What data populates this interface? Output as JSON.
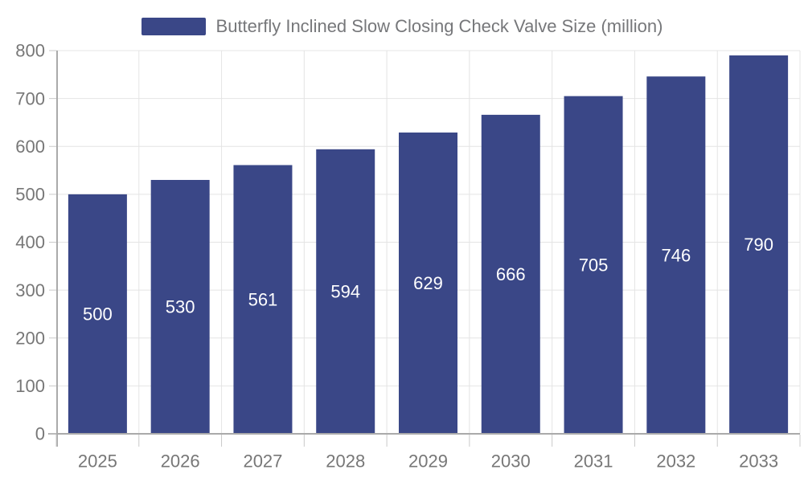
{
  "chart_data": {
    "type": "bar",
    "title": "Butterfly Inclined Slow Closing Check Valve Size (million)",
    "categories": [
      "2025",
      "2026",
      "2027",
      "2028",
      "2029",
      "2030",
      "2031",
      "2032",
      "2033"
    ],
    "values": [
      500,
      530,
      561,
      594,
      629,
      666,
      705,
      746,
      790
    ],
    "xlabel": "",
    "ylabel": "",
    "ylim": [
      0,
      800
    ],
    "yticks": [
      0,
      100,
      200,
      300,
      400,
      500,
      600,
      700,
      800
    ],
    "grid": true,
    "legend_position": "top-center",
    "bar_value_label_style": "white-centered-inside"
  },
  "colors": {
    "bar": "#3A4787",
    "bar_value_label": "#FFFFFF",
    "axis_text": "#777777",
    "legend_text": "#76777A",
    "grid_line": "#E4E4E4",
    "axis_line": "#AAAAAA",
    "tick_line": "#C9C9C9",
    "background": "#FFFFFF"
  }
}
